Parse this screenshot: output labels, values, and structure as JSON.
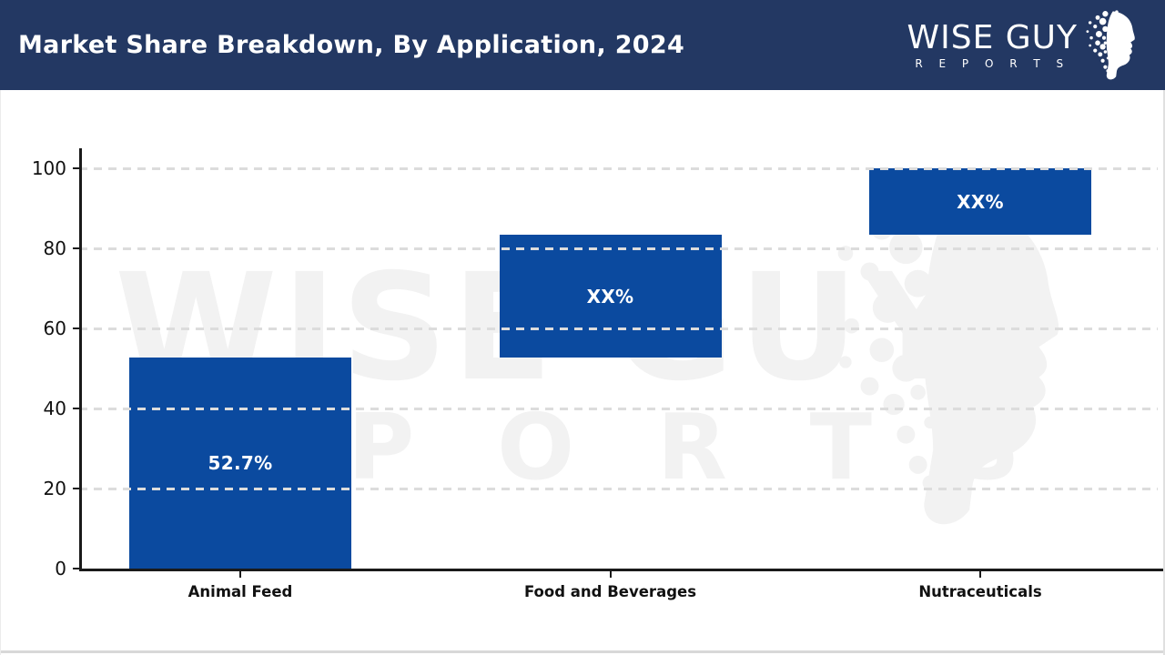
{
  "header": {
    "title": "Market Share Breakdown, By Application, 2024",
    "logo": {
      "line1": "WISE GUY",
      "line2": "R E P O R T S"
    }
  },
  "watermark": {
    "line1": "WISE GUY",
    "line2": "P O R T S"
  },
  "chart_data": {
    "type": "bar",
    "variant": "floating-segment waterfall of market share",
    "title": "Market Share Breakdown, By Application, 2024",
    "categories": [
      "Animal Feed",
      "Food and Beverages",
      "Nutraceuticals"
    ],
    "series": [
      {
        "name": "Market share (%)",
        "segments": [
          {
            "category": "Animal Feed",
            "start": 0,
            "end": 52.7,
            "label": "52.7%"
          },
          {
            "category": "Food and Beverages",
            "start": 52.7,
            "end": 83.3,
            "label": "XX%"
          },
          {
            "category": "Nutraceuticals",
            "start": 83.3,
            "end": 100,
            "label": "XX%"
          }
        ]
      }
    ],
    "xlabel": "",
    "ylabel": "",
    "ylim": [
      0,
      105
    ],
    "yticks": [
      0,
      20,
      40,
      60,
      80,
      100
    ],
    "grid": {
      "show": true,
      "axis": "y",
      "style": "dashed",
      "color": "#dcdcdc"
    },
    "legend": "none",
    "colors": {
      "bar": "#0b4a9f",
      "bar_label": "#ffffff",
      "axis": "#1a1a1a",
      "tick_label": "#111111",
      "header_bg": "#233863",
      "watermark": "#f2f2f2"
    }
  }
}
